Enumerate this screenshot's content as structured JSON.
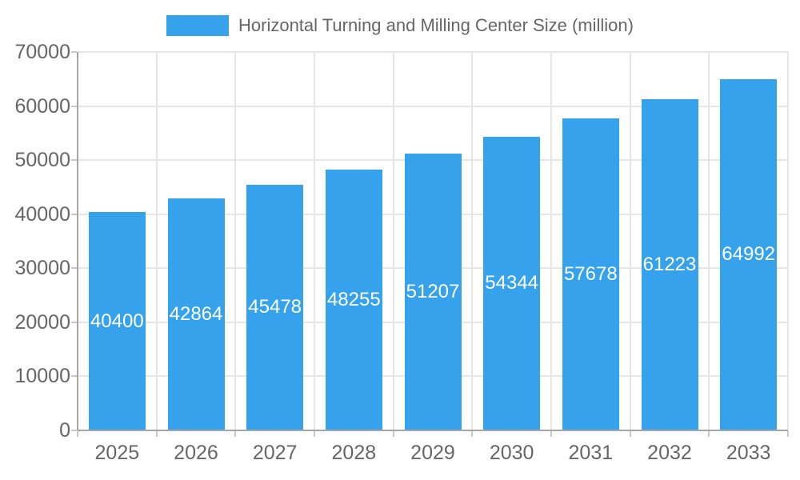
{
  "legend": {
    "label": "Horizontal Turning and Milling Center Size (million)",
    "swatch_color": "#36A2EB",
    "position": "top"
  },
  "chart_data": {
    "type": "bar",
    "title": "",
    "xlabel": "",
    "ylabel": "",
    "categories": [
      "2025",
      "2026",
      "2027",
      "2028",
      "2029",
      "2030",
      "2031",
      "2032",
      "2033"
    ],
    "values": [
      40400,
      42864,
      45478,
      48255,
      51207,
      54344,
      57678,
      61223,
      64992
    ],
    "series_name": "Horizontal Turning and Milling Center Size (million)",
    "ylim": [
      0,
      70000
    ],
    "yticks": [
      0,
      10000,
      20000,
      30000,
      40000,
      50000,
      60000,
      70000
    ],
    "grid": true,
    "legend_position": "top",
    "value_label_position": "inside-center"
  },
  "colors": {
    "bar": "#36A2EB",
    "axis_text": "#666666",
    "grid_line": "#e6e6e6",
    "axis_line": "#a6a6a6",
    "tick_mark": "#c9c9c9",
    "value_label": "#ffffff",
    "background": "#ffffff"
  }
}
